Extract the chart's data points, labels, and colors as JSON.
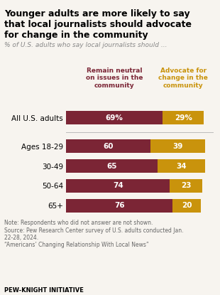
{
  "title_line1": "Younger adults are more likely to say",
  "title_line2": "that local journalists should advocate",
  "title_line3": "for change in the community",
  "subtitle": "% of U.S. adults who say local journalists should ...",
  "col1_label": "Remain neutral\non issues in the\ncommunity",
  "col2_label": "Advocate for\nchange in the\ncommunity",
  "categories": [
    "All U.S. adults",
    "Ages 18-29",
    "30-49",
    "50-64",
    "65+"
  ],
  "neutral_values": [
    69,
    60,
    65,
    74,
    76
  ],
  "advocate_values": [
    29,
    39,
    34,
    23,
    20
  ],
  "neutral_labels": [
    "69%",
    "60",
    "65",
    "74",
    "76"
  ],
  "advocate_labels": [
    "29%",
    "39",
    "34",
    "23",
    "20"
  ],
  "neutral_color": "#7B2535",
  "advocate_color": "#C9930C",
  "bg_color": "#F7F4EF",
  "note_text": "Note: Respondents who did not answer are not shown.\nSource: Pew Research Center survey of U.S. adults conducted Jan.\n22-28, 2024.\n“Americans’ Changing Relationship With Local News”",
  "footer": "PEW-KNIGHT INITIATIVE"
}
